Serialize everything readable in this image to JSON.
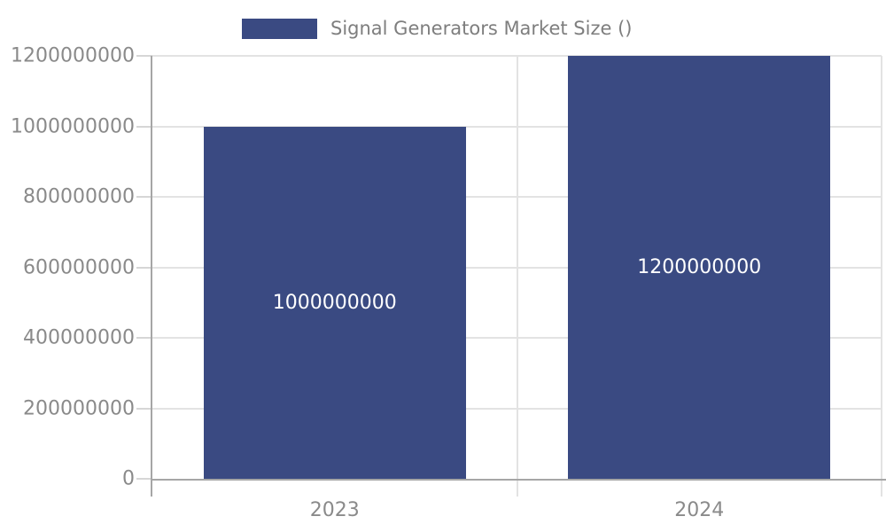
{
  "legend": {
    "label": "Signal Generators Market Size ()"
  },
  "chart_data": {
    "type": "bar",
    "title": "Signal Generators Market Size ()",
    "categories": [
      "2023",
      "2024"
    ],
    "values": [
      1000000000,
      1200000000
    ],
    "series": [
      {
        "name": "Signal Generators Market Size ()",
        "values": [
          1000000000,
          1200000000
        ]
      }
    ],
    "bar_value_labels": [
      "1000000000",
      "1200000000"
    ],
    "xlabel": "",
    "ylabel": "",
    "ylim": [
      0,
      1200000000
    ],
    "yticks": [
      0,
      200000000,
      400000000,
      600000000,
      800000000,
      1000000000,
      1200000000
    ],
    "grid": true,
    "legend_position": "top",
    "colors": {
      "bar": "#3A4A82",
      "gridline": "#e3e3e3",
      "axis": "#a6a6a6",
      "tick_label": "#8a8a8a",
      "legend_text": "#7e7e7e",
      "bar_label_text": "#ffffff"
    }
  }
}
